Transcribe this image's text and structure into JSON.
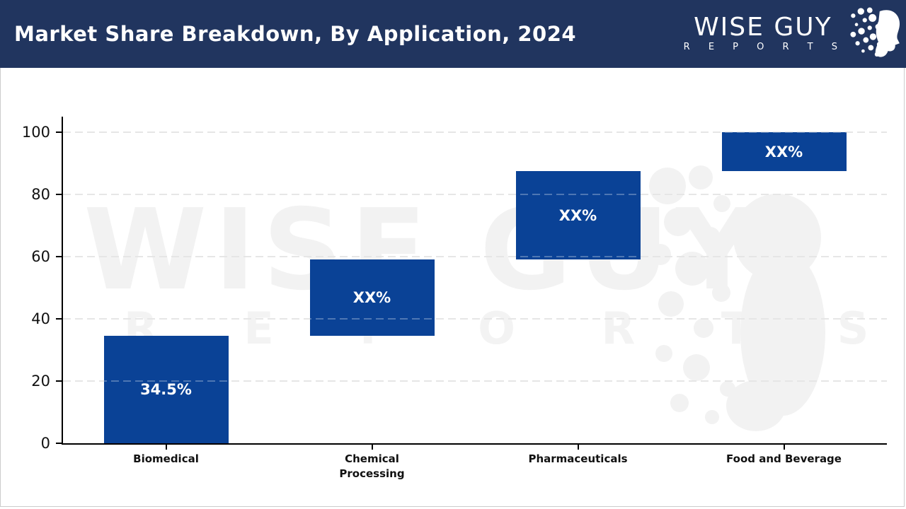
{
  "header": {
    "title": "Market Share Breakdown, By Application, 2024",
    "logo": {
      "name": "WISE GUY",
      "tagline": "R E P O R T S"
    }
  },
  "watermark": {
    "line1": "WISE GUY",
    "line2": "R E P O R T S"
  },
  "chart_data": {
    "type": "bar",
    "subtype": "floating-waterfall-segments",
    "title": "Market Share Breakdown, By Application, 2024",
    "categories": [
      "Biomedical",
      "Chemical Processing",
      "Pharmaceuticals",
      "Food and Beverage"
    ],
    "tick_labels": [
      "Biomedical",
      "Chemical\nProcessing",
      "Pharmaceuticals",
      "Food and Beverage"
    ],
    "segments": [
      {
        "category": "Biomedical",
        "start": 0,
        "end": 34.5,
        "label": "34.5%"
      },
      {
        "category": "Chemical Processing",
        "start": 34.5,
        "end": 59,
        "label": "XX%"
      },
      {
        "category": "Pharmaceuticals",
        "start": 59,
        "end": 87.5,
        "label": "XX%"
      },
      {
        "category": "Food and Beverage",
        "start": 87.5,
        "end": 100,
        "label": "XX%"
      }
    ],
    "ylim": [
      0,
      105
    ],
    "yticks": [
      0,
      20,
      40,
      60,
      80,
      100
    ],
    "xlabel": "",
    "ylabel": "",
    "grid": "horizontal-dashed",
    "legend": "none",
    "bar_color": "#0a4296",
    "bar_label_color": "#ffffff"
  },
  "colors": {
    "header_bg": "#21355f",
    "title_text": "#ffffff",
    "axis": "#000000",
    "grid": "#dcdcdc",
    "bar": "#0a4296",
    "watermark": "#f2f2f2",
    "page_border": "#cccccc"
  }
}
